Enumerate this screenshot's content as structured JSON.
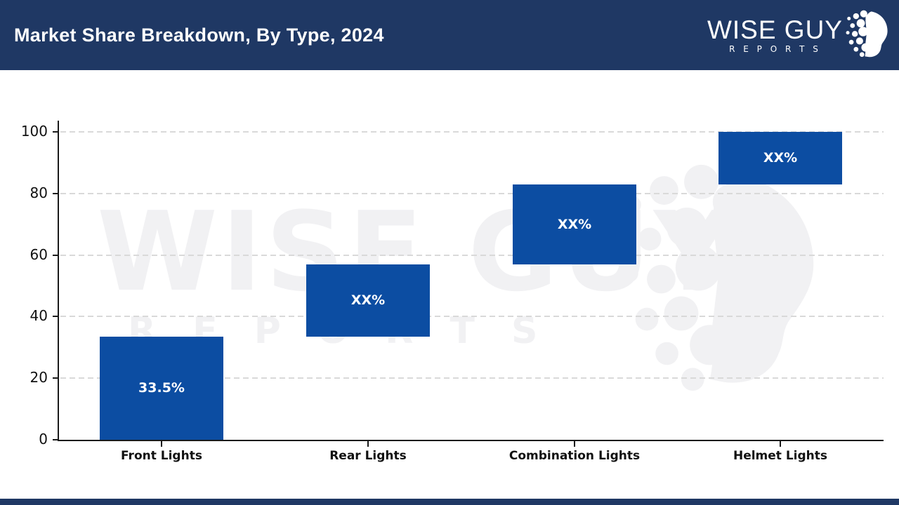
{
  "header": {
    "title": "Market Share Breakdown, By Type, 2024",
    "logo": {
      "wordmark": "WISE GUY",
      "subtext": "R E P O R T S"
    }
  },
  "watermark": {
    "line1": "WISE GUY",
    "line2": "R E P O R T S"
  },
  "chart_data": {
    "type": "bar",
    "subtype": "floating-waterfall",
    "title": "Market Share Breakdown, By Type, 2024",
    "categories": [
      "Front Lights",
      "Rear Lights",
      "Combination Lights",
      "Helmet Lights"
    ],
    "segments": [
      {
        "category": "Front Lights",
        "start": 0,
        "end": 33.5,
        "label": "33.5%"
      },
      {
        "category": "Rear Lights",
        "start": 33.5,
        "end": 57,
        "label": "XX%"
      },
      {
        "category": "Combination Lights",
        "start": 57,
        "end": 83,
        "label": "XX%"
      },
      {
        "category": "Helmet Lights",
        "start": 83,
        "end": 100,
        "label": "XX%"
      }
    ],
    "ylim": [
      0,
      100
    ],
    "yticks": [
      0,
      20,
      40,
      60,
      80,
      100
    ],
    "grid": "horizontal-dashed",
    "legend": "none",
    "bar_color": "#0c4da2",
    "bar_label_color": "#ffffff",
    "axis_color": "#1a1a1a",
    "grid_color": "#d9d9d9"
  },
  "colors": {
    "header_bg": "#1f3864",
    "footer_bg": "#1f3864",
    "page_bg": "#ffffff"
  }
}
